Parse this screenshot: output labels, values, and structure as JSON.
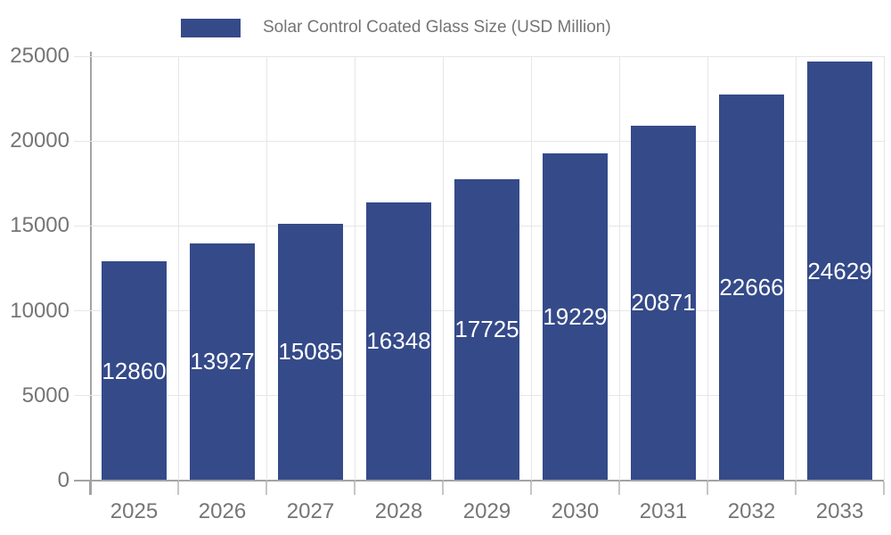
{
  "legend": {
    "label": "Solar Control Coated Glass Size (USD Million)"
  },
  "chart_data": {
    "type": "bar",
    "title": "Solar Control Coated Glass Size (USD Million)",
    "series_name": "Solar Control Coated Glass Size (USD Million)",
    "categories": [
      "2025",
      "2026",
      "2027",
      "2028",
      "2029",
      "2030",
      "2031",
      "2032",
      "2033"
    ],
    "values": [
      12860,
      13927,
      15085,
      16348,
      17725,
      19229,
      20871,
      22666,
      24629
    ],
    "xlabel": "",
    "ylabel": "",
    "ylim": [
      0,
      25000
    ],
    "yticks": [
      0,
      5000,
      10000,
      15000,
      20000,
      25000
    ],
    "grid": true,
    "legend_position": "top",
    "value_labels_inside_bars": true
  },
  "colors": {
    "bar": "#354a89",
    "bar_value_label": "#ffffff",
    "axis_text": "#757575",
    "legend_text": "#747474",
    "gridline": "#e6e6e6",
    "axis_line": "#a3a3a3",
    "x_tick": "#c6c6c6",
    "background": "#ffffff"
  }
}
